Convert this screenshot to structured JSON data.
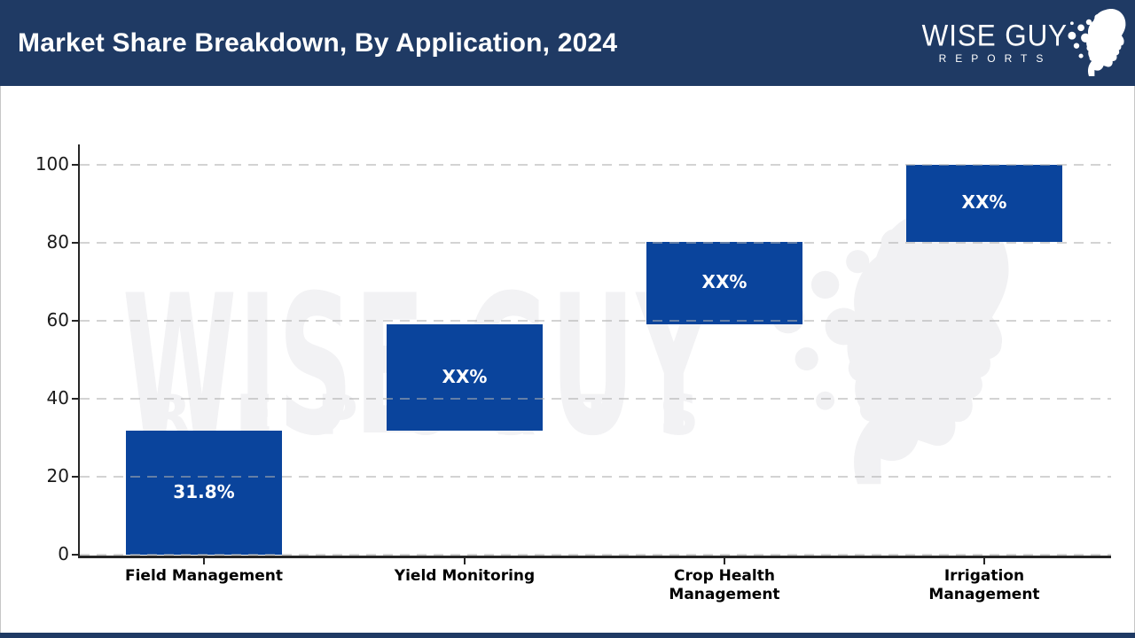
{
  "header": {
    "title": "Market Share Breakdown, By Application, 2024",
    "bg_color": "#1f3a64",
    "logo": {
      "line1": "WISE GUY",
      "line2": "REPORTS"
    }
  },
  "watermark": {
    "line1": "WISE GUY",
    "line2": "REPORTS"
  },
  "footer": {
    "bar_color": "#1f3a64"
  },
  "chart_data": {
    "type": "bar",
    "subtype": "waterfall",
    "title": "Market Share Breakdown, By Application, 2024",
    "categories": [
      "Field Management",
      "Yield Monitoring",
      "Crop Health Management",
      "Irrigation Management"
    ],
    "category_label_lines": [
      [
        "Field Management"
      ],
      [
        "Yield Monitoring"
      ],
      [
        "Crop Health",
        "Management"
      ],
      [
        "Irrigation",
        "Management"
      ]
    ],
    "series": [
      {
        "name": "Market Share %",
        "starts": [
          0,
          31.8,
          59.2,
          80.3
        ],
        "ends": [
          31.8,
          59.2,
          80.3,
          100
        ],
        "values": [
          31.8,
          27.4,
          21.1,
          19.7
        ],
        "bar_labels": [
          "31.8%",
          "XX%",
          "XX%",
          "XX%"
        ]
      }
    ],
    "xlabel": "",
    "ylabel": "",
    "ylim": [
      0,
      100
    ],
    "yticks": [
      0,
      20,
      40,
      60,
      80,
      100
    ],
    "grid": "dashed-horizontal",
    "legend": "none",
    "bar_color": "#0a449c",
    "grid_color": "#c9c9c9",
    "axis_color": "#262626"
  }
}
